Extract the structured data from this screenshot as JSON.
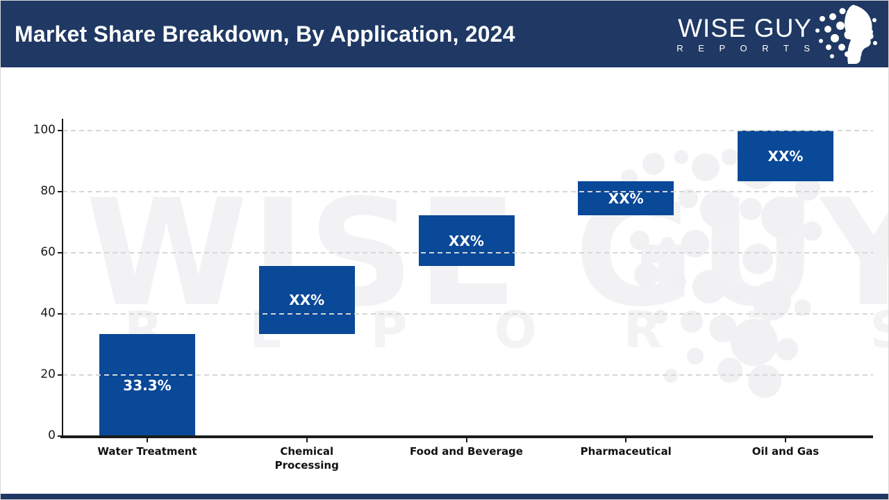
{
  "header": {
    "title": "Market Share Breakdown, By Application, 2024",
    "background_color": "#1f3864",
    "logo": {
      "name": "WISE GUY REPORTS",
      "line1": "WISE GUY",
      "line2": "R E P O R T S"
    }
  },
  "watermark": {
    "line1": "WISE GUY",
    "line2": "R E P O R T S"
  },
  "chart_data": {
    "type": "bar",
    "subtype": "waterfall",
    "title": "Market Share Breakdown, By Application, 2024",
    "categories": [
      "Water Treatment",
      "Chemical\nProcessing",
      "Food and Beverage",
      "Pharmaceutical",
      "Oil and Gas"
    ],
    "segments": [
      {
        "category": "Water Treatment",
        "start": 0,
        "end": 33.3,
        "label": "33.3%"
      },
      {
        "category": "Chemical Processing",
        "start": 33.3,
        "end": 55.6,
        "label": "XX%"
      },
      {
        "category": "Food and Beverage",
        "start": 55.6,
        "end": 72.2,
        "label": "XX%"
      },
      {
        "category": "Pharmaceutical",
        "start": 72.2,
        "end": 83.3,
        "label": "XX%"
      },
      {
        "category": "Oil and Gas",
        "start": 83.3,
        "end": 100,
        "label": "XX%"
      }
    ],
    "xlabel": "",
    "ylabel": "",
    "ylim": [
      0,
      100
    ],
    "yticks": [
      0,
      20,
      40,
      60,
      80,
      100
    ],
    "grid": "horizontal-dashed",
    "legend": "none",
    "bar_color": "#0a4898",
    "bar_label_color": "#ffffff",
    "axis_color": "#1a1a1a",
    "gridline_color": "#d6d6d6"
  },
  "footer": {
    "background_color": "#1f3864"
  }
}
